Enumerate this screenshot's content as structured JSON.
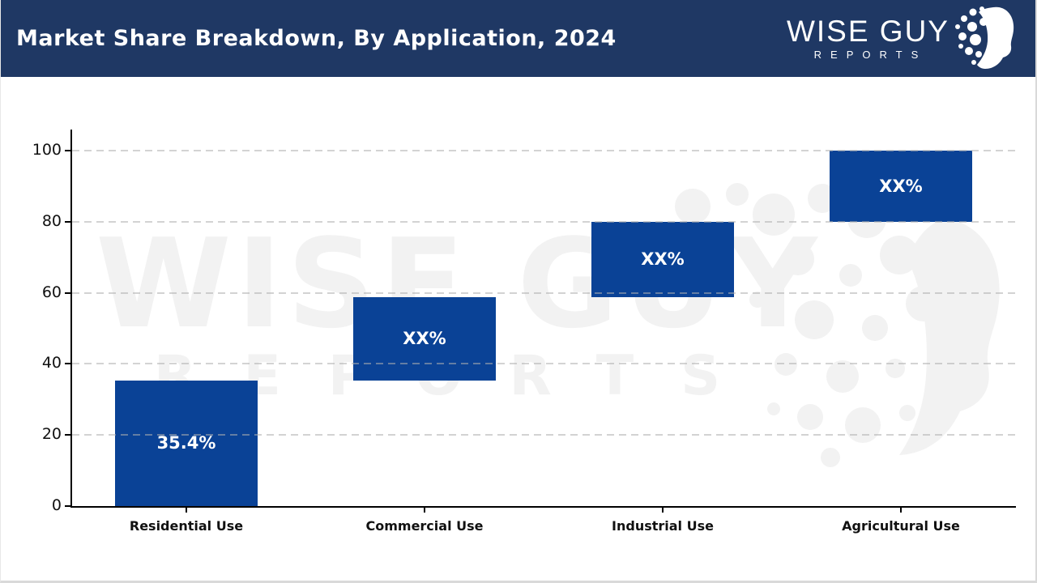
{
  "header": {
    "title": "Market Share Breakdown, By Application, 2024",
    "logo": {
      "line1": "WISE GUY",
      "line2": "REPORTS"
    }
  },
  "watermark": {
    "line1": "WISE GUY",
    "line2": "REPORTS"
  },
  "colors": {
    "header_bg": "#1f3864",
    "bar": "#0a4296",
    "bar_label_text": "#ffffff",
    "grid": "#bdbdbd",
    "axis": "#000000",
    "watermark": "#f2f2f2",
    "frame_line": "#d9d9d9"
  },
  "chart_data": {
    "type": "bar",
    "subtype": "waterfall",
    "title": "Market Share Breakdown, By Application, 2024",
    "xlabel": "",
    "ylabel": "",
    "categories": [
      "Residential Use",
      "Commercial Use",
      "Industrial Use",
      "Agricultural Use"
    ],
    "bars": [
      {
        "category": "Residential Use",
        "start": 0,
        "end": 35.4,
        "label": "35.4%"
      },
      {
        "category": "Commercial Use",
        "start": 35.4,
        "end": 58.8,
        "label": "XX%"
      },
      {
        "category": "Industrial Use",
        "start": 58.8,
        "end": 80.0,
        "label": "XX%"
      },
      {
        "category": "Agricultural Use",
        "start": 80.0,
        "end": 100.0,
        "label": "XX%"
      }
    ],
    "yticks": [
      0,
      20,
      40,
      60,
      80,
      100
    ],
    "ylim": [
      0,
      100
    ],
    "grid": "horizontal-dashed",
    "legend": "none",
    "bar_color": "#0a4296"
  }
}
